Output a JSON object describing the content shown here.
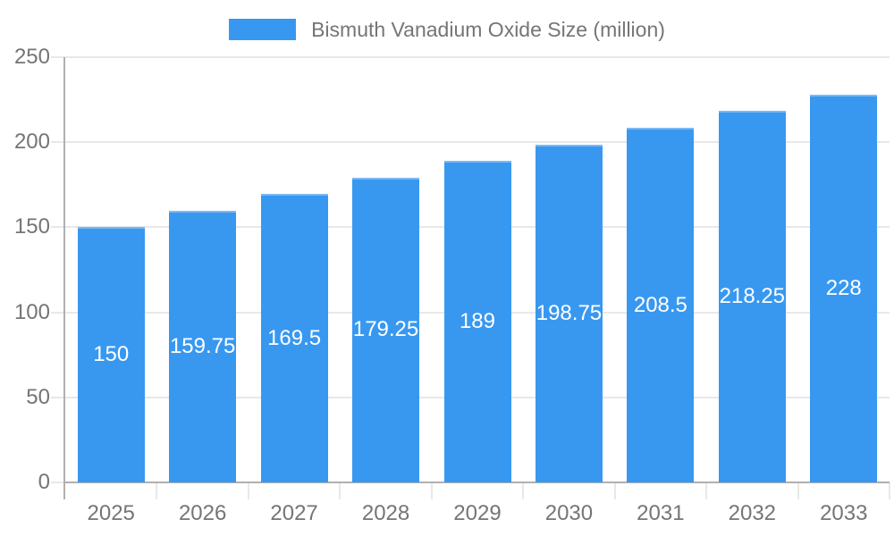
{
  "legend": {
    "label": "Bismuth Vanadium Oxide Size (million)"
  },
  "chart_data": {
    "type": "bar",
    "title": "Bismuth Vanadium Oxide Size (million)",
    "series_name": "Bismuth Vanadium Oxide Size (million)",
    "categories": [
      "2025",
      "2026",
      "2027",
      "2028",
      "2029",
      "2030",
      "2031",
      "2032",
      "2033"
    ],
    "values": [
      150,
      159.75,
      169.5,
      179.25,
      189,
      198.75,
      208.5,
      218.25,
      228
    ],
    "xlabel": "",
    "ylabel": "",
    "ylim": [
      0,
      250
    ],
    "yticks": [
      0,
      50,
      100,
      150,
      200,
      250
    ],
    "grid": true,
    "legend_position": "top",
    "value_label_position": "inside-middle",
    "colors": {
      "bar_fill": "#3898f0",
      "bar_stroke": "#7cb9f4",
      "axis_line": "#b0b0b0",
      "gridline": "#e8e8e8",
      "tick_text": "#757575",
      "bar_label_text": "#ffffff",
      "background": "#ffffff"
    }
  }
}
